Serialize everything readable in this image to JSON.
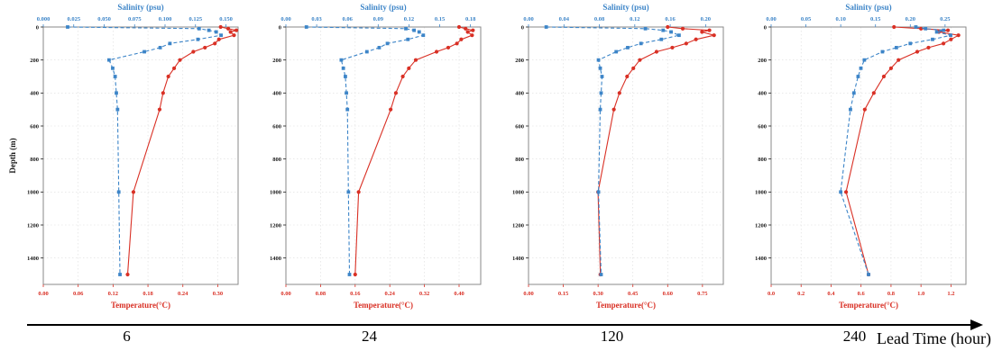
{
  "footer": {
    "axis_label": "Lead Time (hour)"
  },
  "style": {
    "salinity_color": "#3d85c8",
    "temperature_color": "#d93025",
    "depth_color": "#1a1a1a",
    "grid_color": "#dcdcdc",
    "border_color": "#8a8a8a"
  },
  "chart_data": [
    {
      "type": "line",
      "lead_time": "6",
      "top_axis": {
        "label": "Salinity (psu)",
        "tick_labels": [
          "0.000",
          "0.025",
          "0.050",
          "0.075",
          "0.100",
          "0.125",
          "0.150"
        ],
        "tick_values": [
          0,
          0.025,
          0.05,
          0.075,
          0.1,
          0.125,
          0.15
        ],
        "max": 0.16
      },
      "bottom_axis": {
        "label": "Temperature(°C)",
        "tick_labels": [
          "0.00",
          "0.06",
          "0.12",
          "0.18",
          "0.24",
          "0.30"
        ],
        "tick_values": [
          0,
          0.06,
          0.12,
          0.18,
          0.24,
          0.3
        ],
        "max": 0.335
      },
      "left_axis": {
        "label": "Depth (m)",
        "tick_labels": [
          "0",
          "200",
          "400",
          "600",
          "800",
          "1000",
          "1200",
          "1400"
        ],
        "tick_values": [
          0,
          200,
          400,
          600,
          800,
          1000,
          1200,
          1400
        ],
        "max": 1560
      },
      "depths": [
        0,
        10,
        20,
        30,
        50,
        75,
        100,
        125,
        150,
        200,
        250,
        300,
        400,
        500,
        1000,
        1500
      ],
      "series": [
        {
          "name": "Temperature",
          "axis": "bottom",
          "values": [
            0.305,
            0.318,
            0.332,
            0.322,
            0.328,
            0.302,
            0.295,
            0.278,
            0.258,
            0.235,
            0.225,
            0.215,
            0.206,
            0.2,
            0.155,
            0.145
          ]
        },
        {
          "name": "Salinity",
          "axis": "top",
          "values": [
            0.02,
            0.128,
            0.136,
            0.142,
            0.146,
            0.127,
            0.104,
            0.096,
            0.083,
            0.054,
            0.057,
            0.059,
            0.06,
            0.061,
            0.062,
            0.063
          ]
        }
      ]
    },
    {
      "type": "line",
      "lead_time": "24",
      "top_axis": {
        "label": "Salinity (psu)",
        "tick_labels": [
          "0.00",
          "0.03",
          "0.06",
          "0.09",
          "0.12",
          "0.15",
          "0.18"
        ],
        "tick_values": [
          0,
          0.03,
          0.06,
          0.09,
          0.12,
          0.15,
          0.18
        ],
        "max": 0.19
      },
      "bottom_axis": {
        "label": "Temperature(°C)",
        "tick_labels": [
          "0.00",
          "0.08",
          "0.16",
          "0.24",
          "0.32",
          "0.40"
        ],
        "tick_values": [
          0,
          0.08,
          0.16,
          0.24,
          0.32,
          0.4
        ],
        "max": 0.45
      },
      "left_axis": {
        "label": "",
        "tick_labels": [
          "0",
          "200",
          "400",
          "600",
          "800",
          "1000",
          "1200",
          "1400"
        ],
        "tick_values": [
          0,
          200,
          400,
          600,
          800,
          1000,
          1200,
          1400
        ],
        "max": 1560
      },
      "depths": [
        0,
        10,
        20,
        30,
        50,
        75,
        100,
        125,
        150,
        200,
        250,
        300,
        400,
        500,
        1000,
        1500
      ],
      "series": [
        {
          "name": "Temperature",
          "axis": "bottom",
          "values": [
            0.4,
            0.415,
            0.432,
            0.42,
            0.43,
            0.405,
            0.395,
            0.375,
            0.348,
            0.3,
            0.284,
            0.27,
            0.254,
            0.242,
            0.168,
            0.16
          ]
        },
        {
          "name": "Salinity",
          "axis": "top",
          "values": [
            0.02,
            0.117,
            0.125,
            0.13,
            0.134,
            0.119,
            0.099,
            0.091,
            0.079,
            0.054,
            0.056,
            0.058,
            0.059,
            0.06,
            0.061,
            0.062
          ]
        }
      ]
    },
    {
      "type": "line",
      "lead_time": "120",
      "top_axis": {
        "label": "Salinity (psu)",
        "tick_labels": [
          "0.00",
          "0.04",
          "0.08",
          "0.12",
          "0.16",
          "0.20"
        ],
        "tick_values": [
          0,
          0.04,
          0.08,
          0.12,
          0.16,
          0.2
        ],
        "max": 0.22
      },
      "bottom_axis": {
        "label": "Temperature(°C)",
        "tick_labels": [
          "0.00",
          "0.15",
          "0.30",
          "0.45",
          "0.60",
          "0.75"
        ],
        "tick_values": [
          0,
          0.15,
          0.3,
          0.45,
          0.6,
          0.75
        ],
        "max": 0.84
      },
      "left_axis": {
        "label": "",
        "tick_labels": [
          "0",
          "200",
          "400",
          "600",
          "800",
          "1000",
          "1200",
          "1400"
        ],
        "tick_values": [
          0,
          200,
          400,
          600,
          800,
          1000,
          1200,
          1400
        ],
        "max": 1560
      },
      "depths": [
        0,
        10,
        20,
        30,
        50,
        75,
        100,
        125,
        150,
        200,
        250,
        300,
        400,
        500,
        1000,
        1500
      ],
      "series": [
        {
          "name": "Temperature",
          "axis": "bottom",
          "values": [
            0.6,
            0.665,
            0.78,
            0.748,
            0.8,
            0.722,
            0.68,
            0.62,
            0.552,
            0.48,
            0.452,
            0.425,
            0.392,
            0.368,
            0.3,
            0.31
          ]
        },
        {
          "name": "Salinity",
          "axis": "top",
          "values": [
            0.02,
            0.132,
            0.152,
            0.161,
            0.17,
            0.15,
            0.127,
            0.112,
            0.099,
            0.079,
            0.081,
            0.083,
            0.082,
            0.081,
            0.079,
            0.082
          ]
        }
      ]
    },
    {
      "type": "line",
      "lead_time": "240",
      "top_axis": {
        "label": "Salinity (psu)",
        "tick_labels": [
          "0.00",
          "0.05",
          "0.10",
          "0.15",
          "0.20",
          "0.25"
        ],
        "tick_values": [
          0,
          0.05,
          0.1,
          0.15,
          0.2,
          0.25
        ],
        "max": 0.28
      },
      "bottom_axis": {
        "label": "Temperature(°C)",
        "tick_labels": [
          "0.0",
          "0.2",
          "0.4",
          "0.6",
          "0.8",
          "1.0",
          "1.2"
        ],
        "tick_values": [
          0,
          0.2,
          0.4,
          0.6,
          0.8,
          1.0,
          1.2
        ],
        "max": 1.3
      },
      "left_axis": {
        "label": "",
        "tick_labels": [
          "0",
          "200",
          "400",
          "600",
          "800",
          "1000",
          "1200",
          "1400"
        ],
        "tick_values": [
          0,
          200,
          400,
          600,
          800,
          1000,
          1200,
          1400
        ],
        "max": 1560
      },
      "depths": [
        0,
        10,
        20,
        30,
        50,
        75,
        100,
        125,
        150,
        200,
        250,
        300,
        400,
        500,
        1000,
        1500
      ],
      "series": [
        {
          "name": "Temperature",
          "axis": "bottom",
          "values": [
            0.82,
            1.0,
            1.18,
            1.12,
            1.25,
            1.2,
            1.15,
            1.05,
            0.975,
            0.85,
            0.8,
            0.752,
            0.685,
            0.625,
            0.5,
            0.65
          ]
        },
        {
          "name": "Salinity",
          "axis": "top",
          "values": [
            0.208,
            0.222,
            0.248,
            0.238,
            0.258,
            0.232,
            0.2,
            0.18,
            0.16,
            0.134,
            0.129,
            0.125,
            0.119,
            0.114,
            0.1,
            0.14
          ]
        }
      ]
    }
  ]
}
